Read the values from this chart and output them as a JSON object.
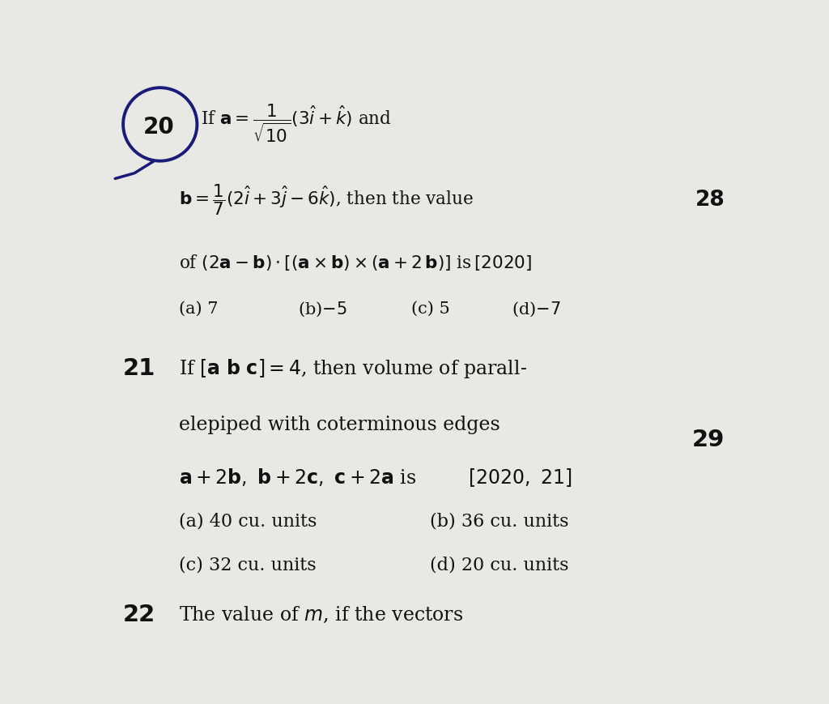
{
  "background_color": "#e8e8e4",
  "fig_width": 10.24,
  "fig_height": 8.7,
  "dpi": 100,
  "text_color": "#111111",
  "bold_color": "#0a0a0a",
  "circle_color": "#1a1a6e",
  "q20_num": "20",
  "q21_num": "21",
  "q22_num": "22",
  "right_28": "28",
  "right_29": "29",
  "line_color": "#999999"
}
